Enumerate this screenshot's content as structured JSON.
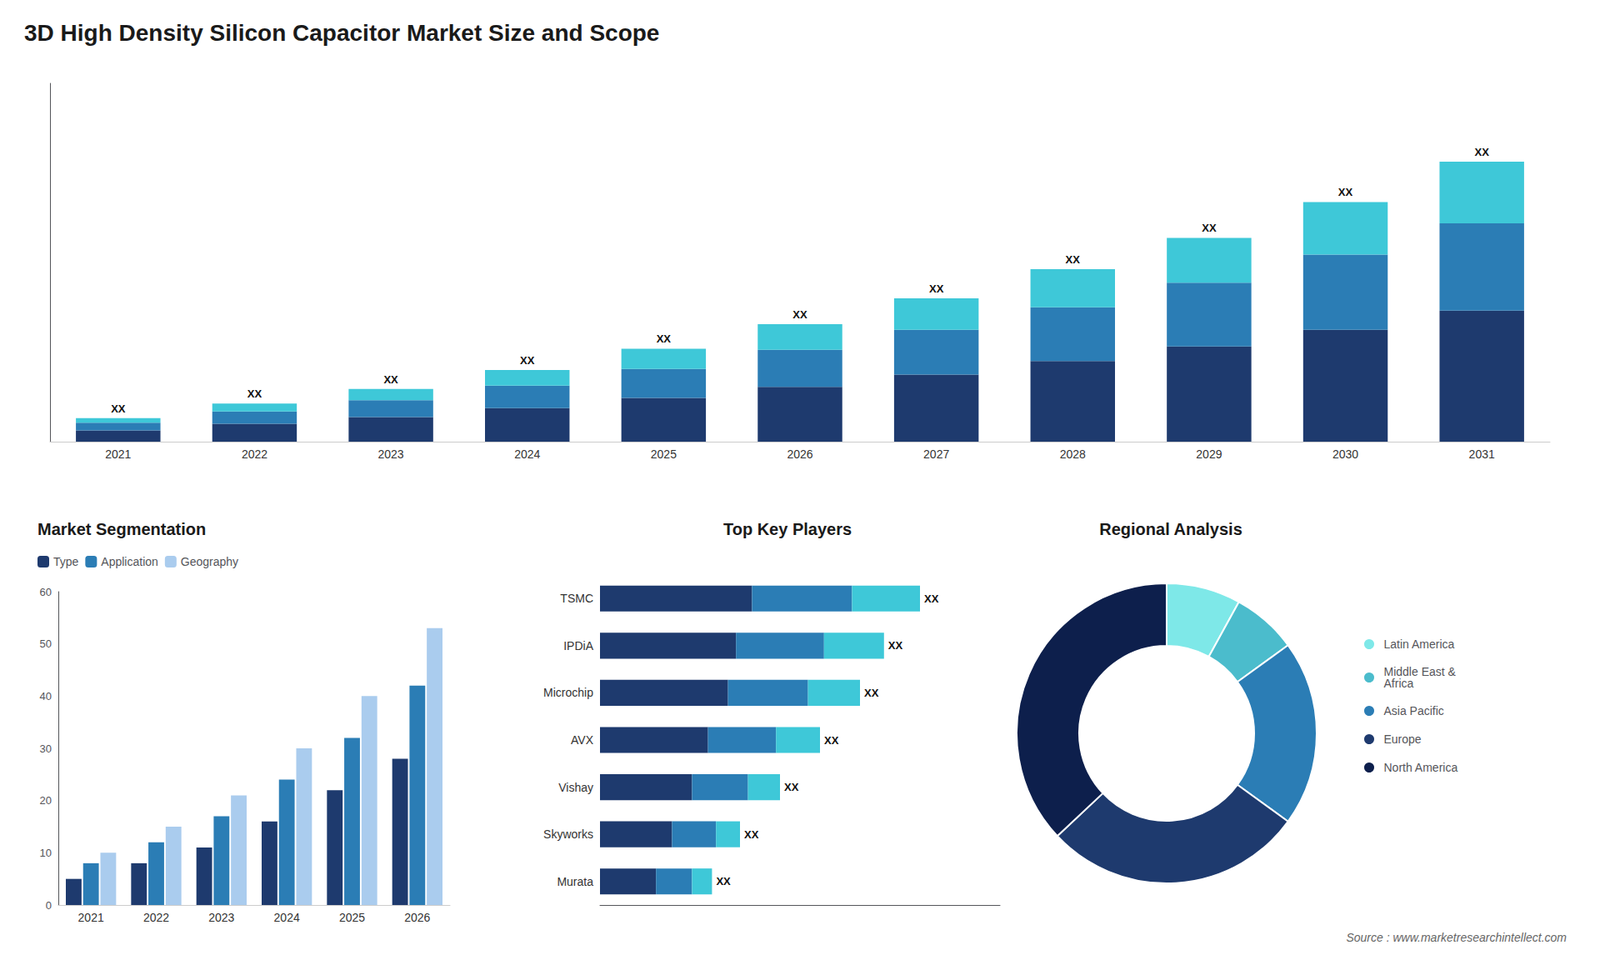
{
  "chart_data": [
    {
      "type": "bar",
      "title": "3D High Density Silicon Capacitor Market Size and Scope",
      "categories": [
        "2021",
        "2022",
        "2023",
        "2024",
        "2025",
        "2026",
        "2027",
        "2028",
        "2029",
        "2030",
        "2031"
      ],
      "stacked": true,
      "series": [
        {
          "color": "#1e3a6e",
          "values": [
            1.0,
            1.6,
            2.2,
            3.0,
            3.9,
            4.9,
            6.0,
            7.2,
            8.5,
            10.0,
            11.7
          ]
        },
        {
          "color": "#2b7db5",
          "values": [
            0.7,
            1.1,
            1.5,
            2.0,
            2.6,
            3.3,
            4.0,
            4.8,
            5.7,
            6.7,
            7.8
          ]
        },
        {
          "color": "#3ec8d8",
          "values": [
            0.4,
            0.7,
            1.0,
            1.4,
            1.8,
            2.3,
            2.8,
            3.4,
            4.0,
            4.7,
            5.5
          ],
          "value_labels": [
            "XX",
            "XX",
            "XX",
            "XX",
            "XX",
            "XX",
            "XX",
            "XX",
            "XX",
            "XX",
            "XX"
          ]
        }
      ],
      "ylim": [
        0,
        32
      ],
      "tick_labels": "x",
      "grid": false
    },
    {
      "type": "bar",
      "title": "Market Segmentation",
      "categories": [
        "2021",
        "2022",
        "2023",
        "2024",
        "2025",
        "2026"
      ],
      "series": [
        {
          "name": "Type",
          "color": "#1e3a6e",
          "values": [
            5,
            8,
            11,
            16,
            22,
            28
          ]
        },
        {
          "name": "Application",
          "color": "#2b7db5",
          "values": [
            8,
            12,
            17,
            24,
            32,
            42
          ]
        },
        {
          "name": "Geography",
          "color": "#aaccee",
          "values": [
            10,
            15,
            21,
            30,
            40,
            53
          ]
        }
      ],
      "ylim": [
        0,
        60
      ],
      "yticks": [
        0,
        10,
        20,
        30,
        40,
        50,
        60
      ],
      "grid": false,
      "legend": "top"
    },
    {
      "type": "bar",
      "title": "Top Key Players",
      "orientation": "horizontal",
      "stacked": true,
      "categories": [
        "TSMC",
        "IPDiA",
        "Microchip",
        "AVX",
        "Vishay",
        "Skyworks",
        "Murata"
      ],
      "series": [
        {
          "color": "#1e3a6e",
          "values": [
            0.38,
            0.34,
            0.32,
            0.27,
            0.23,
            0.18,
            0.14
          ]
        },
        {
          "color": "#2b7db5",
          "values": [
            0.25,
            0.22,
            0.2,
            0.17,
            0.14,
            0.11,
            0.09
          ]
        },
        {
          "color": "#3ec8d8",
          "values": [
            0.17,
            0.15,
            0.13,
            0.11,
            0.08,
            0.06,
            0.05
          ],
          "value_labels": [
            "XX",
            "XX",
            "XX",
            "XX",
            "XX",
            "XX",
            "XX"
          ]
        }
      ],
      "xlim": [
        0,
        1.0
      ],
      "tick_labels": "y",
      "grid": false
    },
    {
      "type": "pie",
      "title": "Regional Analysis",
      "categories": [
        "Latin America",
        "Middle East &\nAfrica",
        "Asia Pacific",
        "Europe",
        "North America"
      ],
      "values": [
        8,
        7,
        20,
        28,
        37
      ],
      "colors": [
        "#7ee8e8",
        "#4bbccc",
        "#2b7db5",
        "#1e3a6e",
        "#0d1f4c"
      ],
      "legend": "right",
      "annotations": [
        "Source : www.marketresearchintellect.com"
      ]
    }
  ]
}
